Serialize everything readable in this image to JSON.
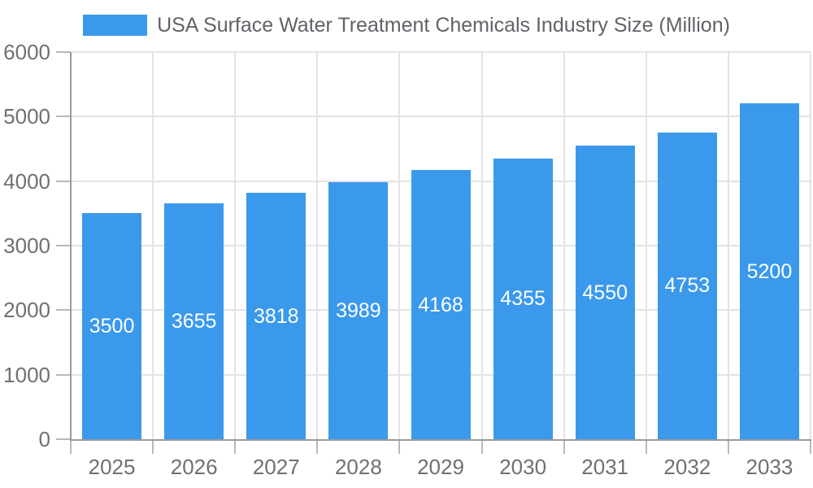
{
  "chart_data": {
    "type": "bar",
    "title": "",
    "legend": "USA Surface Water Treatment Chemicals Industry Size (Million)",
    "legend_position": "top-center",
    "categories": [
      "2025",
      "2026",
      "2027",
      "2028",
      "2029",
      "2030",
      "2031",
      "2032",
      "2033"
    ],
    "values": [
      3500,
      3655,
      3818,
      3989,
      4168,
      4355,
      4550,
      4753,
      5200
    ],
    "data_labels": [
      "3500",
      "3655",
      "3818",
      "3989",
      "4168",
      "4355",
      "4550",
      "4753",
      "5200"
    ],
    "data_labels_position": "inside-center",
    "xlabel": "",
    "ylabel": "",
    "ylim": [
      0,
      6000
    ],
    "ytick_step": 1000,
    "y_tick_labels": [
      "0",
      "1000",
      "2000",
      "3000",
      "4000",
      "5000",
      "6000"
    ],
    "grid": true,
    "colors": {
      "bar": "#3B99EC",
      "axis_line": "#9A9A9A",
      "tick_mark": "#B8B8B8",
      "gridline": "#E3E3E3",
      "tick_label": "#707070",
      "legend_label": "#5F6368",
      "data_label": "#FFFFFF",
      "background": "#FFFFFF"
    }
  }
}
